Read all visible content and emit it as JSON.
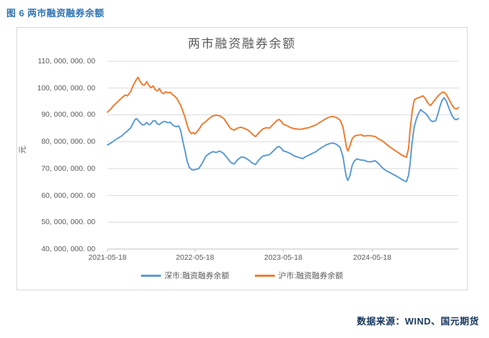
{
  "header": {
    "figure_label": "图 6 两市融资融券余额",
    "color": "#2E74B5"
  },
  "footer": {
    "source_text": "数据来源：WIND、国元期货",
    "color": "#17375D"
  },
  "chart_data": {
    "type": "line",
    "title": "两市融资融券余额",
    "ylabel": "元",
    "xlabel": "",
    "ylim": [
      40000000,
      110000000
    ],
    "y_tick_interval": 10000000,
    "y_tick_labels": [
      "110, 000, 000. 00",
      "100, 000, 000. 00",
      "90, 000, 000. 00",
      "80, 000, 000. 00",
      "70, 000, 000. 00",
      "60, 000, 000. 00",
      "50, 000, 000. 00",
      "40, 000, 000. 00"
    ],
    "x_tick_labels": [
      "2021-05-18",
      "2022-05-18",
      "2023-05-18",
      "2024-05-18"
    ],
    "x_tick_positions": [
      0.0,
      0.2495,
      0.501,
      0.7546
    ],
    "grid": "horizontal",
    "legend_position": "bottom",
    "value_unit": 1000000,
    "grid_color": "#d9d9d9",
    "axis_color": "#bfbfbf",
    "series": [
      {
        "name": "深市:融资融券余额",
        "color": "#5B9BD5",
        "points": [
          [
            0.0,
            78.8
          ],
          [
            0.01,
            79.5
          ],
          [
            0.02,
            80.5
          ],
          [
            0.03,
            81.3
          ],
          [
            0.041,
            82.2
          ],
          [
            0.051,
            83.4
          ],
          [
            0.057,
            84.0
          ],
          [
            0.067,
            85.3
          ],
          [
            0.073,
            87.0
          ],
          [
            0.079,
            88.3
          ],
          [
            0.083,
            88.6
          ],
          [
            0.087,
            88.0
          ],
          [
            0.093,
            87.1
          ],
          [
            0.099,
            86.3
          ],
          [
            0.105,
            86.3
          ],
          [
            0.112,
            87.2
          ],
          [
            0.118,
            86.3
          ],
          [
            0.124,
            86.7
          ],
          [
            0.13,
            87.8
          ],
          [
            0.136,
            87.8
          ],
          [
            0.142,
            86.7
          ],
          [
            0.148,
            86.4
          ],
          [
            0.154,
            87.0
          ],
          [
            0.16,
            87.5
          ],
          [
            0.166,
            87.5
          ],
          [
            0.172,
            87.0
          ],
          [
            0.179,
            87.3
          ],
          [
            0.185,
            86.3
          ],
          [
            0.191,
            85.8
          ],
          [
            0.197,
            85.6
          ],
          [
            0.203,
            85.9
          ],
          [
            0.209,
            84.0
          ],
          [
            0.215,
            80.0
          ],
          [
            0.221,
            76.5
          ],
          [
            0.227,
            72.8
          ],
          [
            0.233,
            70.5
          ],
          [
            0.239,
            69.7
          ],
          [
            0.245,
            69.4
          ],
          [
            0.249,
            69.6
          ],
          [
            0.26,
            70.0
          ],
          [
            0.27,
            72.0
          ],
          [
            0.28,
            74.5
          ],
          [
            0.29,
            75.6
          ],
          [
            0.3,
            76.3
          ],
          [
            0.31,
            76.0
          ],
          [
            0.32,
            76.5
          ],
          [
            0.331,
            75.6
          ],
          [
            0.341,
            74.0
          ],
          [
            0.351,
            72.3
          ],
          [
            0.361,
            71.7
          ],
          [
            0.371,
            73.3
          ],
          [
            0.381,
            74.3
          ],
          [
            0.391,
            74.1
          ],
          [
            0.402,
            73.2
          ],
          [
            0.412,
            72.1
          ],
          [
            0.422,
            71.5
          ],
          [
            0.432,
            73.3
          ],
          [
            0.442,
            74.6
          ],
          [
            0.452,
            74.9
          ],
          [
            0.462,
            75.2
          ],
          [
            0.473,
            76.6
          ],
          [
            0.483,
            77.9
          ],
          [
            0.489,
            78.2
          ],
          [
            0.495,
            77.6
          ],
          [
            0.501,
            76.6
          ],
          [
            0.511,
            76.2
          ],
          [
            0.521,
            75.6
          ],
          [
            0.531,
            74.8
          ],
          [
            0.541,
            74.3
          ],
          [
            0.551,
            73.9
          ],
          [
            0.557,
            73.7
          ],
          [
            0.563,
            74.3
          ],
          [
            0.573,
            74.9
          ],
          [
            0.583,
            75.6
          ],
          [
            0.593,
            76.2
          ],
          [
            0.603,
            77.2
          ],
          [
            0.613,
            78.0
          ],
          [
            0.623,
            78.8
          ],
          [
            0.633,
            79.3
          ],
          [
            0.643,
            79.5
          ],
          [
            0.653,
            79.0
          ],
          [
            0.663,
            77.8
          ],
          [
            0.671,
            74.5
          ],
          [
            0.677,
            69.5
          ],
          [
            0.681,
            66.8
          ],
          [
            0.685,
            65.6
          ],
          [
            0.691,
            67.5
          ],
          [
            0.697,
            71.0
          ],
          [
            0.703,
            72.8
          ],
          [
            0.711,
            73.6
          ],
          [
            0.721,
            73.2
          ],
          [
            0.731,
            73.1
          ],
          [
            0.741,
            72.6
          ],
          [
            0.751,
            72.5
          ],
          [
            0.763,
            72.9
          ],
          [
            0.773,
            71.8
          ],
          [
            0.783,
            70.3
          ],
          [
            0.793,
            69.3
          ],
          [
            0.803,
            68.6
          ],
          [
            0.813,
            67.9
          ],
          [
            0.823,
            67.2
          ],
          [
            0.833,
            66.4
          ],
          [
            0.843,
            65.6
          ],
          [
            0.852,
            65.1
          ],
          [
            0.858,
            67.5
          ],
          [
            0.862,
            71.5
          ],
          [
            0.868,
            79.5
          ],
          [
            0.874,
            85.5
          ],
          [
            0.88,
            88.3
          ],
          [
            0.886,
            90.4
          ],
          [
            0.893,
            92.0
          ],
          [
            0.899,
            91.2
          ],
          [
            0.905,
            90.7
          ],
          [
            0.911,
            89.9
          ],
          [
            0.917,
            88.6
          ],
          [
            0.921,
            87.9
          ],
          [
            0.927,
            87.5
          ],
          [
            0.935,
            87.8
          ],
          [
            0.941,
            90.0
          ],
          [
            0.947,
            93.0
          ],
          [
            0.953,
            95.2
          ],
          [
            0.959,
            96.4
          ],
          [
            0.965,
            95.3
          ],
          [
            0.971,
            93.3
          ],
          [
            0.977,
            91.2
          ],
          [
            0.983,
            89.5
          ],
          [
            0.989,
            88.4
          ],
          [
            0.994,
            88.2
          ],
          [
            1.0,
            88.6
          ]
        ]
      },
      {
        "name": "沪市:融资融券余额",
        "color": "#ED7D31",
        "points": [
          [
            0.0,
            91.0
          ],
          [
            0.01,
            92.3
          ],
          [
            0.02,
            93.8
          ],
          [
            0.03,
            95.0
          ],
          [
            0.041,
            96.4
          ],
          [
            0.051,
            97.4
          ],
          [
            0.057,
            97.1
          ],
          [
            0.067,
            98.9
          ],
          [
            0.073,
            100.9
          ],
          [
            0.079,
            102.4
          ],
          [
            0.083,
            103.2
          ],
          [
            0.087,
            104.0
          ],
          [
            0.093,
            102.5
          ],
          [
            0.099,
            101.3
          ],
          [
            0.105,
            101.1
          ],
          [
            0.112,
            102.4
          ],
          [
            0.118,
            100.9
          ],
          [
            0.124,
            100.1
          ],
          [
            0.13,
            100.8
          ],
          [
            0.136,
            99.4
          ],
          [
            0.142,
            98.9
          ],
          [
            0.148,
            99.8
          ],
          [
            0.154,
            98.3
          ],
          [
            0.16,
            97.9
          ],
          [
            0.166,
            98.6
          ],
          [
            0.172,
            98.2
          ],
          [
            0.179,
            98.4
          ],
          [
            0.185,
            97.6
          ],
          [
            0.191,
            97.0
          ],
          [
            0.197,
            96.2
          ],
          [
            0.203,
            94.8
          ],
          [
            0.209,
            93.4
          ],
          [
            0.215,
            91.3
          ],
          [
            0.221,
            89.0
          ],
          [
            0.227,
            86.2
          ],
          [
            0.233,
            84.0
          ],
          [
            0.239,
            83.0
          ],
          [
            0.245,
            83.4
          ],
          [
            0.249,
            82.9
          ],
          [
            0.26,
            84.5
          ],
          [
            0.27,
            86.5
          ],
          [
            0.28,
            87.5
          ],
          [
            0.29,
            88.7
          ],
          [
            0.3,
            89.6
          ],
          [
            0.31,
            89.9
          ],
          [
            0.32,
            89.6
          ],
          [
            0.331,
            88.7
          ],
          [
            0.341,
            86.8
          ],
          [
            0.351,
            84.9
          ],
          [
            0.361,
            84.3
          ],
          [
            0.371,
            85.1
          ],
          [
            0.381,
            85.4
          ],
          [
            0.391,
            84.9
          ],
          [
            0.402,
            84.2
          ],
          [
            0.412,
            82.9
          ],
          [
            0.422,
            81.9
          ],
          [
            0.432,
            83.4
          ],
          [
            0.442,
            84.7
          ],
          [
            0.452,
            85.2
          ],
          [
            0.462,
            85.1
          ],
          [
            0.473,
            86.6
          ],
          [
            0.483,
            87.9
          ],
          [
            0.489,
            88.3
          ],
          [
            0.495,
            87.6
          ],
          [
            0.501,
            86.5
          ],
          [
            0.511,
            86.0
          ],
          [
            0.521,
            85.3
          ],
          [
            0.531,
            84.9
          ],
          [
            0.541,
            84.7
          ],
          [
            0.551,
            84.6
          ],
          [
            0.557,
            84.8
          ],
          [
            0.563,
            85.0
          ],
          [
            0.573,
            85.2
          ],
          [
            0.583,
            85.7
          ],
          [
            0.593,
            86.2
          ],
          [
            0.603,
            87.0
          ],
          [
            0.613,
            87.8
          ],
          [
            0.623,
            88.6
          ],
          [
            0.633,
            89.2
          ],
          [
            0.643,
            89.4
          ],
          [
            0.653,
            89.0
          ],
          [
            0.663,
            88.0
          ],
          [
            0.671,
            85.5
          ],
          [
            0.677,
            81.0
          ],
          [
            0.681,
            78.0
          ],
          [
            0.685,
            76.5
          ],
          [
            0.691,
            78.5
          ],
          [
            0.697,
            81.0
          ],
          [
            0.703,
            82.0
          ],
          [
            0.711,
            82.4
          ],
          [
            0.721,
            82.6
          ],
          [
            0.731,
            82.1
          ],
          [
            0.741,
            82.3
          ],
          [
            0.751,
            82.2
          ],
          [
            0.763,
            81.9
          ],
          [
            0.773,
            81.0
          ],
          [
            0.783,
            80.3
          ],
          [
            0.793,
            79.3
          ],
          [
            0.803,
            78.2
          ],
          [
            0.813,
            77.3
          ],
          [
            0.823,
            76.4
          ],
          [
            0.833,
            75.5
          ],
          [
            0.843,
            74.7
          ],
          [
            0.852,
            74.2
          ],
          [
            0.858,
            77.5
          ],
          [
            0.862,
            84.0
          ],
          [
            0.868,
            91.0
          ],
          [
            0.874,
            95.5
          ],
          [
            0.88,
            96.1
          ],
          [
            0.886,
            96.4
          ],
          [
            0.893,
            96.7
          ],
          [
            0.899,
            97.1
          ],
          [
            0.905,
            96.2
          ],
          [
            0.911,
            94.9
          ],
          [
            0.917,
            93.8
          ],
          [
            0.921,
            93.5
          ],
          [
            0.927,
            94.6
          ],
          [
            0.935,
            95.9
          ],
          [
            0.941,
            96.9
          ],
          [
            0.947,
            97.7
          ],
          [
            0.953,
            98.3
          ],
          [
            0.959,
            98.5
          ],
          [
            0.965,
            97.7
          ],
          [
            0.971,
            96.3
          ],
          [
            0.977,
            94.8
          ],
          [
            0.983,
            93.4
          ],
          [
            0.989,
            92.4
          ],
          [
            0.994,
            92.2
          ],
          [
            1.0,
            92.7
          ]
        ]
      }
    ]
  }
}
